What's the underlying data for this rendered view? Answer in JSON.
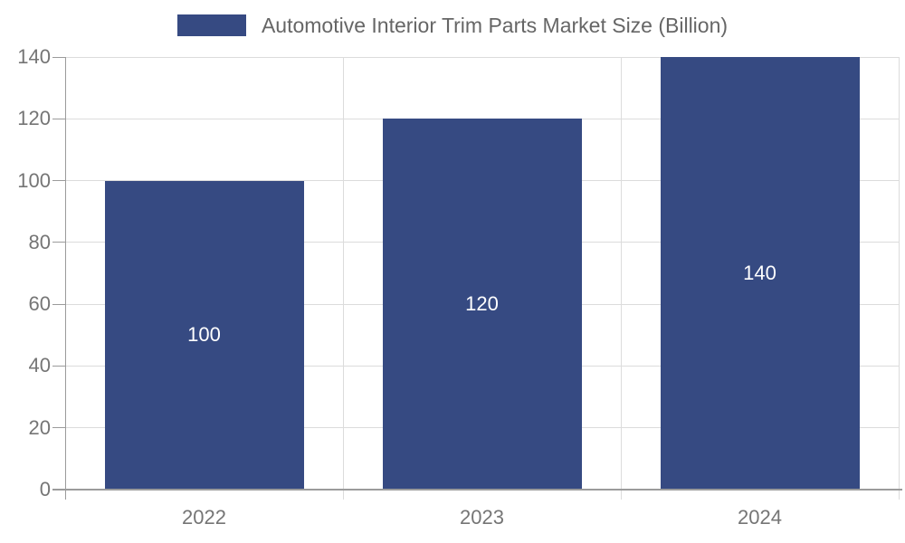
{
  "chart_data": {
    "type": "bar",
    "title": "Automotive Interior Trim Parts Market Size (Billion)",
    "categories": [
      "2022",
      "2023",
      "2024"
    ],
    "series": [
      {
        "name": "Automotive Interior Trim Parts Market Size (Billion)",
        "values": [
          100,
          120,
          140
        ]
      }
    ],
    "value_labels": [
      "100",
      "120",
      "140"
    ],
    "xlabel": "",
    "ylabel": "",
    "ylim": [
      0,
      140
    ],
    "yticks": [
      0,
      20,
      40,
      60,
      80,
      100,
      120,
      140
    ],
    "grid": true,
    "legend_position": "top-center"
  },
  "legend": {
    "label": "Automotive Interior Trim Parts Market Size (Billion)"
  },
  "colors": {
    "bar": "#364a82",
    "grid_line": "#dcdcdc",
    "axis_line": "#9b9b9b",
    "tick_text": "#757575",
    "legend_text": "#666666",
    "value_label_text": "#ffffff",
    "background": "#ffffff"
  }
}
